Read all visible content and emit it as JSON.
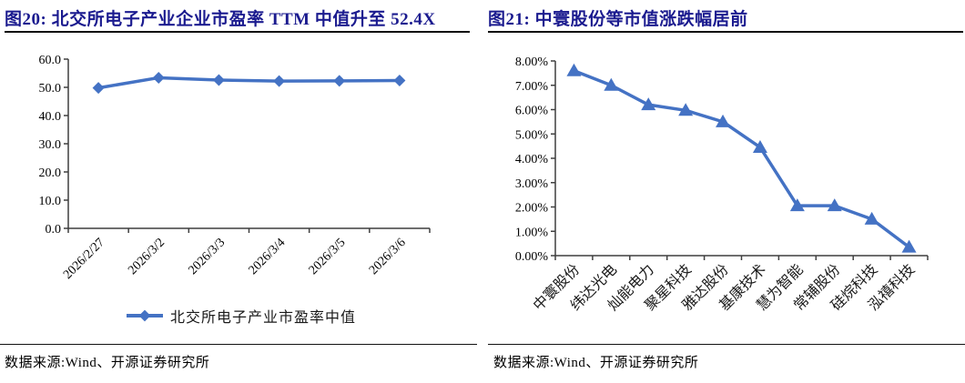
{
  "colors": {
    "title": "#1B1B8F",
    "series": "#4472C4",
    "axis": "#3f3f3f",
    "rule": "#0a0a0a"
  },
  "figures": [
    {
      "id": "fig20",
      "title": "图20: 北交所电子产业企业市盈率 TTM 中值升至 52.4X",
      "legend_label": "北交所电子产业市盈率中值",
      "source": "数据来源:Wind、开源证券研究所"
    },
    {
      "id": "fig21",
      "title": "图21: 中寰股份等市值涨跌幅居前",
      "source": "数据来源:Wind、开源证券研究所"
    }
  ],
  "chart_data": [
    {
      "type": "line",
      "title": "图20: 北交所电子产业企业市盈率 TTM 中值升至 52.4X",
      "series_name": "北交所电子产业市盈率中值",
      "categories": [
        "2026/2/27",
        "2026/3/2",
        "2026/3/3",
        "2026/3/4",
        "2026/3/5",
        "2026/3/6"
      ],
      "values": [
        49.8,
        53.4,
        52.6,
        52.2,
        52.3,
        52.4
      ],
      "xlabel": "",
      "ylabel": "",
      "ylim": [
        0,
        60
      ],
      "ytick_step": 10,
      "yformat": "fixed1",
      "marker": "diamond",
      "color": "#4472C4",
      "grid": false,
      "legend_position": "bottom",
      "xlabel_rotation": -45,
      "xlabel_class": "tick-label"
    },
    {
      "type": "line",
      "title": "图21: 中寰股份等市值涨跌幅居前",
      "series_name": "市值涨跌幅",
      "categories": [
        "中寰股份",
        "纬达光电",
        "灿能电力",
        "聚星科技",
        "雅达股份",
        "基康技术",
        "慧为智能",
        "常辅股份",
        "硅烷科技",
        "泓禧科技"
      ],
      "values": [
        7.6,
        7.0,
        6.2,
        5.97,
        5.5,
        4.45,
        2.05,
        2.05,
        1.5,
        0.35
      ],
      "xlabel": "",
      "ylabel": "",
      "ylim": [
        0,
        8
      ],
      "ytick_step": 1,
      "yformat": "percent2",
      "marker": "triangle",
      "color": "#4472C4",
      "grid": false,
      "legend_position": "none",
      "xlabel_rotation": -45,
      "xlabel_class": "xcat-label"
    }
  ]
}
